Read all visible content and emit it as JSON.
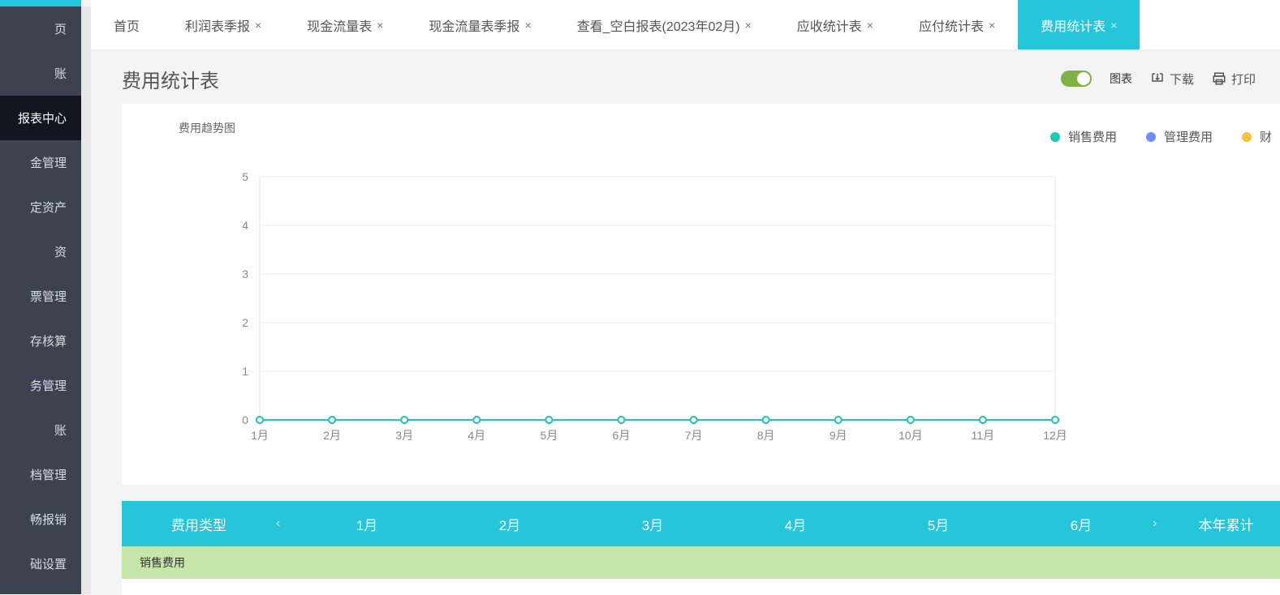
{
  "sidebar": {
    "items": [
      {
        "label": "页"
      },
      {
        "label": "账"
      },
      {
        "label": "报表中心",
        "active": true
      },
      {
        "label": "金管理"
      },
      {
        "label": "定资产"
      },
      {
        "label": "资"
      },
      {
        "label": "票管理"
      },
      {
        "label": "存核算"
      },
      {
        "label": "务管理"
      },
      {
        "label": "账"
      },
      {
        "label": "档管理"
      },
      {
        "label": "畅报销"
      },
      {
        "label": "础设置"
      }
    ]
  },
  "tabs": [
    {
      "label": "首页",
      "closable": false
    },
    {
      "label": "利润表季报",
      "closable": true
    },
    {
      "label": "现金流量表",
      "closable": true
    },
    {
      "label": "现金流量表季报",
      "closable": true
    },
    {
      "label": "查看_空白报表(2023年02月)",
      "closable": true
    },
    {
      "label": "应收统计表",
      "closable": true
    },
    {
      "label": "应付统计表",
      "closable": true
    },
    {
      "label": "费用统计表",
      "closable": true,
      "active": true
    }
  ],
  "page": {
    "title": "费用统计表",
    "toggle_label": "图表",
    "download_label": "下载",
    "print_label": "打印"
  },
  "chart": {
    "title": "费用趋势图",
    "type": "line",
    "categories": [
      "1月",
      "2月",
      "3月",
      "4月",
      "5月",
      "6月",
      "7月",
      "8月",
      "9月",
      "10月",
      "11月",
      "12月"
    ],
    "series": [
      {
        "name": "销售费用",
        "color": "#1ec9b5",
        "values": [
          0,
          0,
          0,
          0,
          0,
          0,
          0,
          0,
          0,
          0,
          0,
          0
        ]
      },
      {
        "name": "管理费用",
        "color": "#6b8cff",
        "values": [
          0,
          0,
          0,
          0,
          0,
          0,
          0,
          0,
          0,
          0,
          0,
          0
        ]
      },
      {
        "name": "财",
        "color": "#f5c23e",
        "values": [
          0,
          0,
          0,
          0,
          0,
          0,
          0,
          0,
          0,
          0,
          0,
          0
        ]
      }
    ],
    "ylim": [
      0,
      5
    ],
    "ytick_step": 1,
    "grid_color": "#eeeeee",
    "border_color": "#e3e3e3",
    "background_color": "#ffffff",
    "label_fontsize": 14,
    "label_color": "#888888",
    "marker_radius": 4,
    "line_width": 2
  },
  "table": {
    "header_bg": "#26c6da",
    "row_highlight_bg": "#c6e5a8",
    "type_header": "费用类型",
    "month_headers": [
      "1月",
      "2月",
      "3月",
      "4月",
      "5月",
      "6月"
    ],
    "total_header": "本年累计",
    "rows": [
      {
        "type": "销售费用",
        "highlight": true,
        "cells": [
          "",
          "",
          "",
          "",
          "",
          ""
        ],
        "total": ""
      }
    ]
  }
}
